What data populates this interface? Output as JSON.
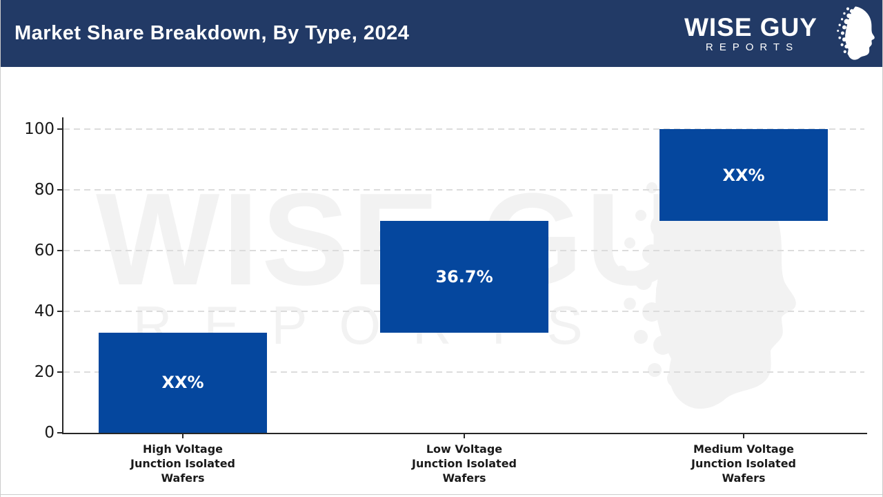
{
  "header": {
    "title": "Market Share Breakdown, By Type, 2024",
    "logo": {
      "line1": "WISE GUY",
      "line2": "REPORTS"
    }
  },
  "watermark": {
    "line1": "WISE GUY",
    "line2": "REPORTS"
  },
  "colors": {
    "header_bg": "#223A66",
    "bar_fill": "#05479E",
    "axis": "#262626",
    "grid": "#DCDCDC",
    "text_dark": "#1A1A1A",
    "value_label": "#FFFFFF",
    "watermark": "#F2F2F2",
    "border": "#CCCCCC"
  },
  "chart_data": {
    "type": "bar",
    "subtype": "floating-segment-bars (waterfall-style, each bar starts where previous ends)",
    "title": "Market Share Breakdown, By Type, 2024",
    "categories": [
      "High Voltage Junction Isolated Wafers",
      "Low Voltage Junction Isolated Wafers",
      "Medium Voltage Junction Isolated Wafers"
    ],
    "category_lines": [
      [
        "High Voltage",
        "Junction Isolated",
        "Wafers"
      ],
      [
        "Low Voltage",
        "Junction Isolated",
        "Wafers"
      ],
      [
        "Medium Voltage",
        "Junction Isolated",
        "Wafers"
      ]
    ],
    "bars": [
      {
        "start": 0,
        "end": 33,
        "height": 33,
        "label": "XX%"
      },
      {
        "start": 33,
        "end": 69.7,
        "height": 36.7,
        "label": "36.7%"
      },
      {
        "start": 69.7,
        "end": 100,
        "height": 30.3,
        "label": "XX%"
      }
    ],
    "xlabel": "",
    "ylabel": "",
    "ylim": [
      0,
      100
    ],
    "yticks": [
      0,
      20,
      40,
      60,
      80,
      100
    ],
    "grid": "horizontal-dashed",
    "legend": "none"
  }
}
